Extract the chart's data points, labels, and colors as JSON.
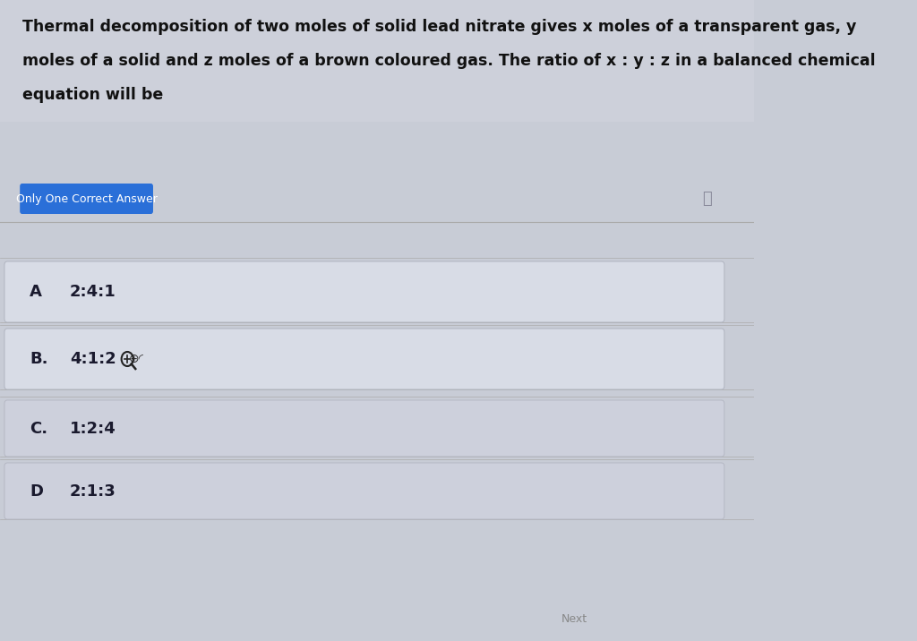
{
  "background_color": "#c8ccd6",
  "question_text_line1": "Thermal decomposition of two moles of solid lead nitrate gives x moles of a transparent gas, y",
  "question_text_line2": "moles of a solid and z moles of a brown coloured gas. The ratio of x : y : z in a balanced chemical",
  "question_text_line3": "equation will be",
  "button_text": "Only One Correct Answer",
  "button_color": "#2a6fd8",
  "button_text_color": "#ffffff",
  "options": [
    {
      "label": "A",
      "text": "2:4:1"
    },
    {
      "label": "B.",
      "text": "4:1:2"
    },
    {
      "label": "C.",
      "text": "1:2:4"
    },
    {
      "label": "D",
      "text": "2:1:3"
    }
  ],
  "option_box_color": "#dde0e8",
  "option_box_border": "#b8bcc8",
  "option_text_color": "#1a1a2e",
  "label_color": "#1a1a2e",
  "question_font_size": 12.5,
  "option_font_size": 12,
  "button_font_size": 9,
  "info_icon_color": "#888899",
  "next_text": "Next",
  "next_color": "#888888"
}
